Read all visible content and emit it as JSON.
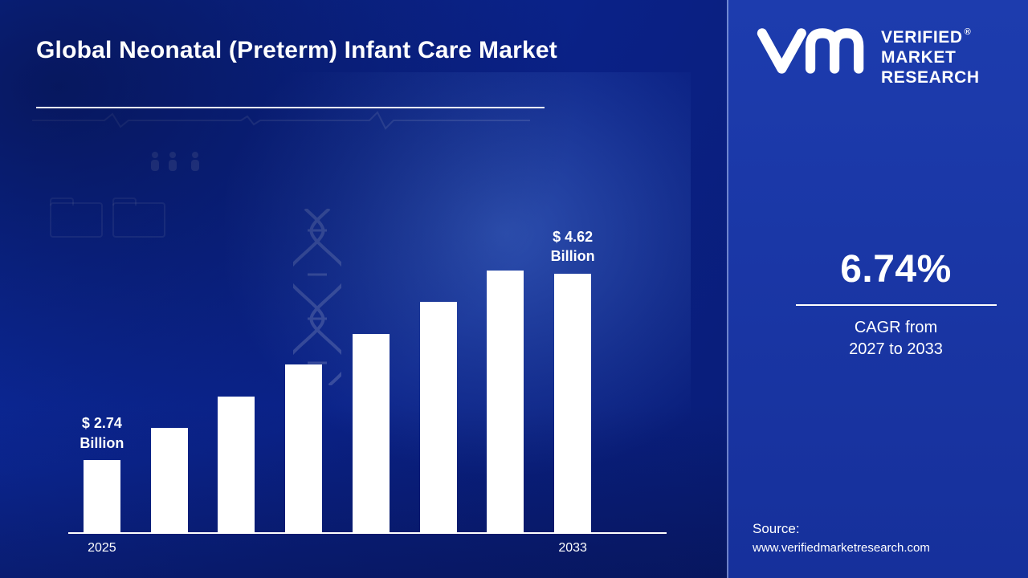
{
  "header": {
    "title": "Global Neonatal (Preterm) Infant Care Market"
  },
  "chart_data": {
    "type": "bar",
    "title": "Global Neonatal (Preterm) Infant Care Market",
    "categories": [
      "2025",
      "",
      "",
      "",
      "",
      "",
      "",
      "2033"
    ],
    "values": [
      2.74,
      3.01,
      3.28,
      3.55,
      3.81,
      4.08,
      4.35,
      4.62
    ],
    "unit": "USD Billion",
    "bar_color": "#ffffff",
    "annotations": [
      {
        "bar_index": 0,
        "lines": [
          "$ 2.74",
          "Billion"
        ]
      },
      {
        "bar_index": 7,
        "lines": [
          "$ 4.62",
          "Billion"
        ]
      }
    ],
    "x_axis_visible_labels": [
      "2025",
      "2033"
    ],
    "ylim_note": "bars not zero-based; first bar 2.74, last bar 4.62",
    "grid": false,
    "legend": false
  },
  "brand": {
    "line1": "VERIFIED",
    "line2": "MARKET",
    "line3": "RESEARCH",
    "registered": "®",
    "logo_icon": "vmr-monogram-icon"
  },
  "panel": {
    "cagr_value": "6.74%",
    "cagr_caption_line1": "CAGR from",
    "cagr_caption_line2": "2027 to 2033",
    "source_label": "Source:",
    "source_url": "www.verifiedmarketresearch.com"
  },
  "colors": {
    "main_background": "#0a2186",
    "panel_background": "#1a38a8",
    "bar": "#ffffff",
    "text": "#ffffff"
  }
}
